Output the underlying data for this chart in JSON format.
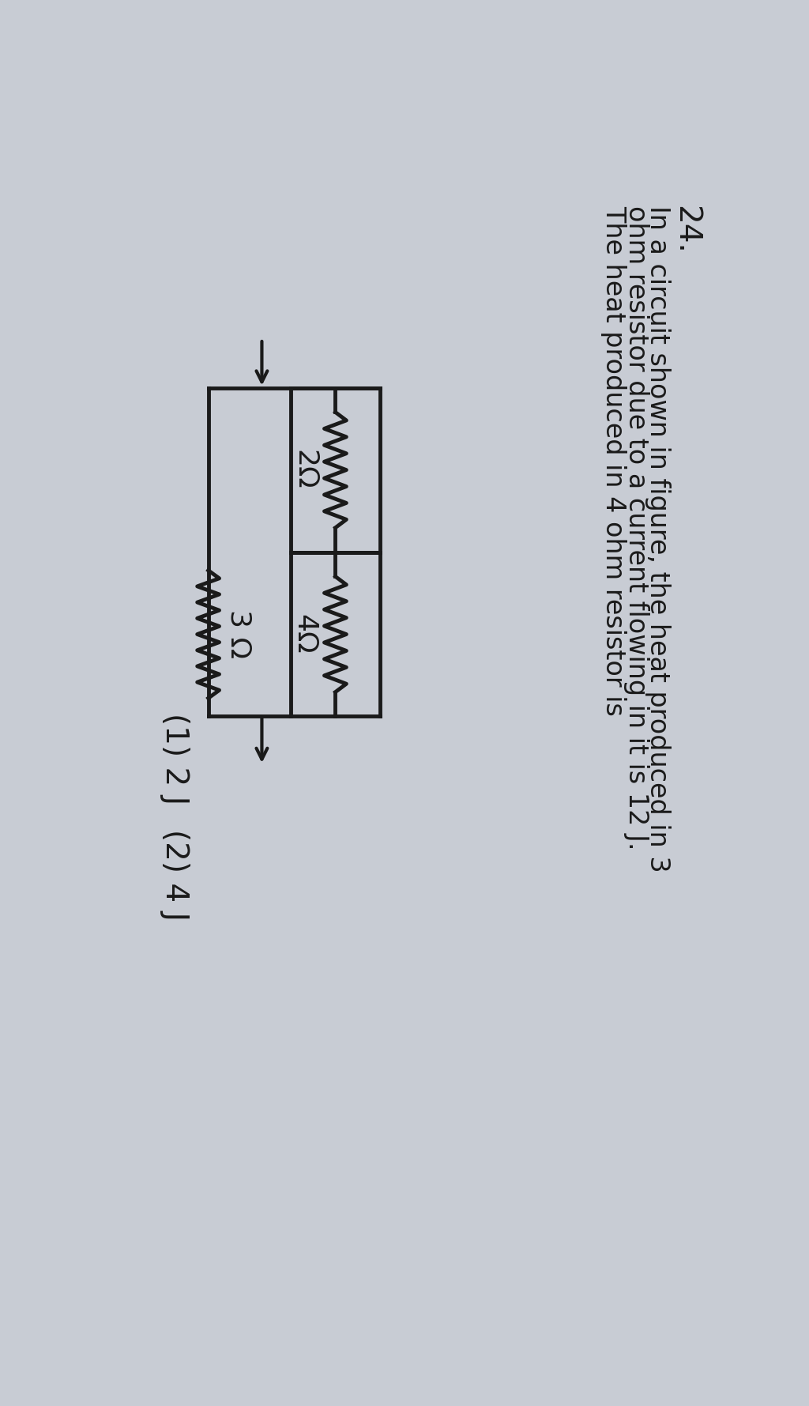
{
  "question_number": "24.",
  "question_text_line1": "In a circuit shown in figure, the heat produced in 3",
  "question_text_line2": "ohm resistor due to a current flowing in it is 12 J.",
  "question_text_line3": "The heat produced in 4 ohm resistor is",
  "option1": "(1) 2 J",
  "option2": "(2) 4 J",
  "bg_color": "#c8ccd4",
  "text_color": "#1a1a1a",
  "circuit_color": "#1a1a1a",
  "resistor_2_label": "2Ω",
  "resistor_4_label": "4Ω",
  "resistor_3_label": "3 Ω"
}
